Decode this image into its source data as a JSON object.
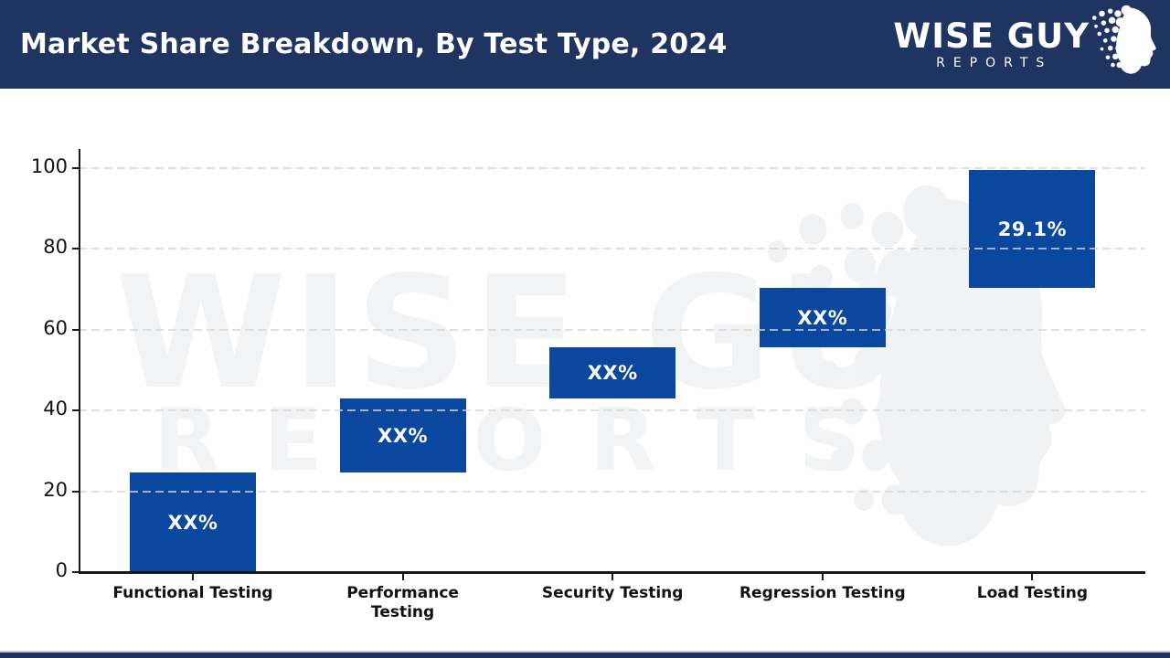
{
  "header": {
    "title": "Market Share Breakdown, By Test Type, 2024",
    "logo": {
      "line1": "WISE GUY",
      "line2": "REPORTS"
    }
  },
  "watermark": {
    "line1": "WISE GUY",
    "line2": "REPORTS"
  },
  "colors": {
    "header_bg": "#203462",
    "footer_bg": "#203462",
    "bar": "#0a479e",
    "grid": "#d6d6d6",
    "axis": "#1a1a1a",
    "tick_text": "#111111",
    "bar_label_text": "#ffffff",
    "watermark": "#f2f3f5"
  },
  "chart_data": {
    "type": "bar",
    "subtype": "waterfall",
    "title": "Market Share Breakdown, By Test Type, 2024",
    "categories": [
      "Functional Testing",
      "Performance\nTesting",
      "Security Testing",
      "Regression Testing",
      "Load Testing"
    ],
    "segments": [
      {
        "label": "XX%",
        "start": 0,
        "end": 24.6
      },
      {
        "label": "XX%",
        "start": 24.6,
        "end": 43.0
      },
      {
        "label": "XX%",
        "start": 43.0,
        "end": 55.6
      },
      {
        "label": "XX%",
        "start": 55.6,
        "end": 70.4
      },
      {
        "label": "29.1%",
        "start": 70.4,
        "end": 99.5
      }
    ],
    "bar_labels": [
      "XX%",
      "XX%",
      "XX%",
      "XX%",
      "29.1%"
    ],
    "yticks": [
      0,
      20,
      40,
      60,
      80,
      100
    ],
    "ylim": [
      0,
      104.5
    ],
    "xlabel": "",
    "ylabel": "",
    "grid": "dashed-horizontal",
    "legend": "none"
  }
}
